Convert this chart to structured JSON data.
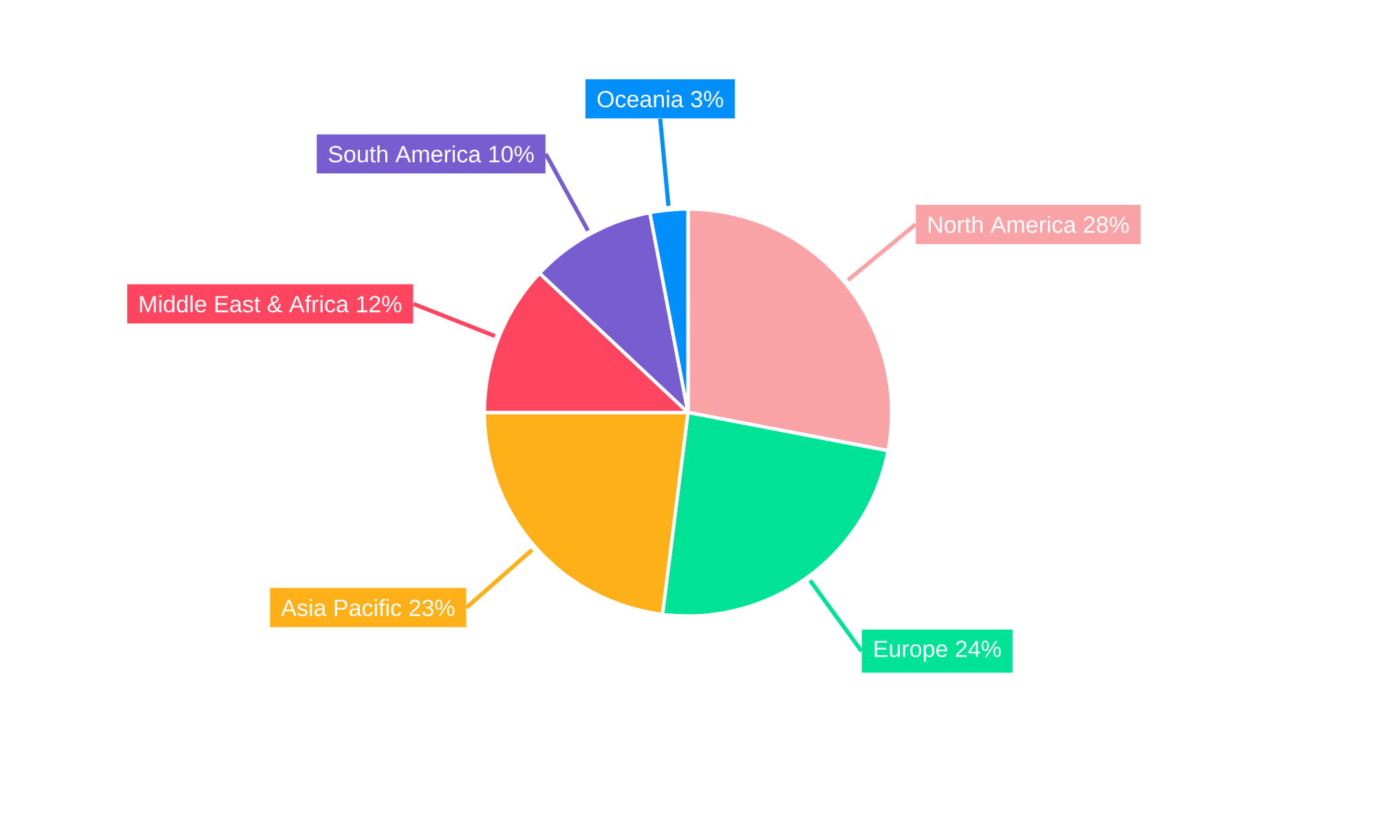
{
  "chart_data": {
    "type": "pie",
    "categories": [
      "North America",
      "Europe",
      "Asia Pacific",
      "Middle East & Africa",
      "South America",
      "Oceania"
    ],
    "values": [
      28,
      24,
      23,
      12,
      10,
      3
    ],
    "value_labels": [
      "28%",
      "24%",
      "23%",
      "12%",
      "10%",
      "3%"
    ],
    "colors": [
      "#f9a3a6",
      "#00e396",
      "#feb019",
      "#ff4560",
      "#775dd0",
      "#008ffb"
    ]
  }
}
